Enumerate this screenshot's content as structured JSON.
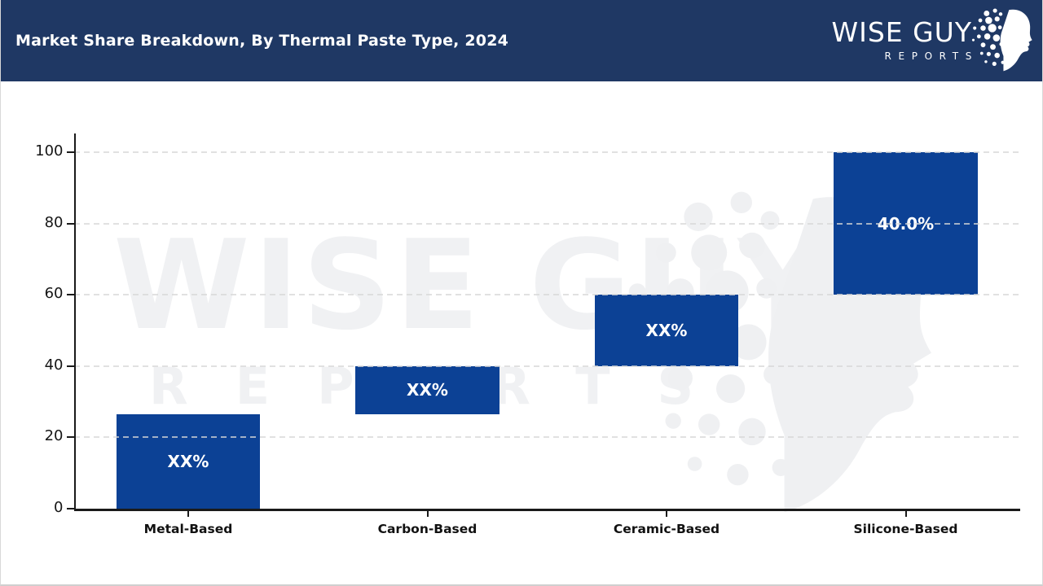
{
  "header": {
    "title": "Market Share Breakdown, By Thermal Paste Type, 2024",
    "brand_name": "WISE GUY",
    "brand_sub": "REPORTS",
    "bg_color": "#1f3864"
  },
  "watermark": {
    "line1": "WISE GUY",
    "line2": "REPORTS"
  },
  "chart_data": {
    "type": "bar",
    "subtype": "floating-waterfall",
    "title": "Market Share Breakdown, By Thermal Paste Type, 2024",
    "categories": [
      "Metal-Based",
      "Carbon-Based",
      "Ceramic-Based",
      "Silicone-Based"
    ],
    "segments": [
      {
        "category": "Metal-Based",
        "start": 0,
        "end": 26.5,
        "label": "XX%"
      },
      {
        "category": "Carbon-Based",
        "start": 26.5,
        "end": 40,
        "label": "XX%"
      },
      {
        "category": "Ceramic-Based",
        "start": 40,
        "end": 60,
        "label": "XX%"
      },
      {
        "category": "Silicone-Based",
        "start": 60,
        "end": 100,
        "label": "40.0%"
      }
    ],
    "yticks": [
      0,
      20,
      40,
      60,
      80,
      100
    ],
    "ylim": [
      0,
      105
    ],
    "xlabel": "",
    "ylabel": "",
    "bar_color": "#0c4195",
    "grid": "horizontal-dashed",
    "legend": "none"
  }
}
